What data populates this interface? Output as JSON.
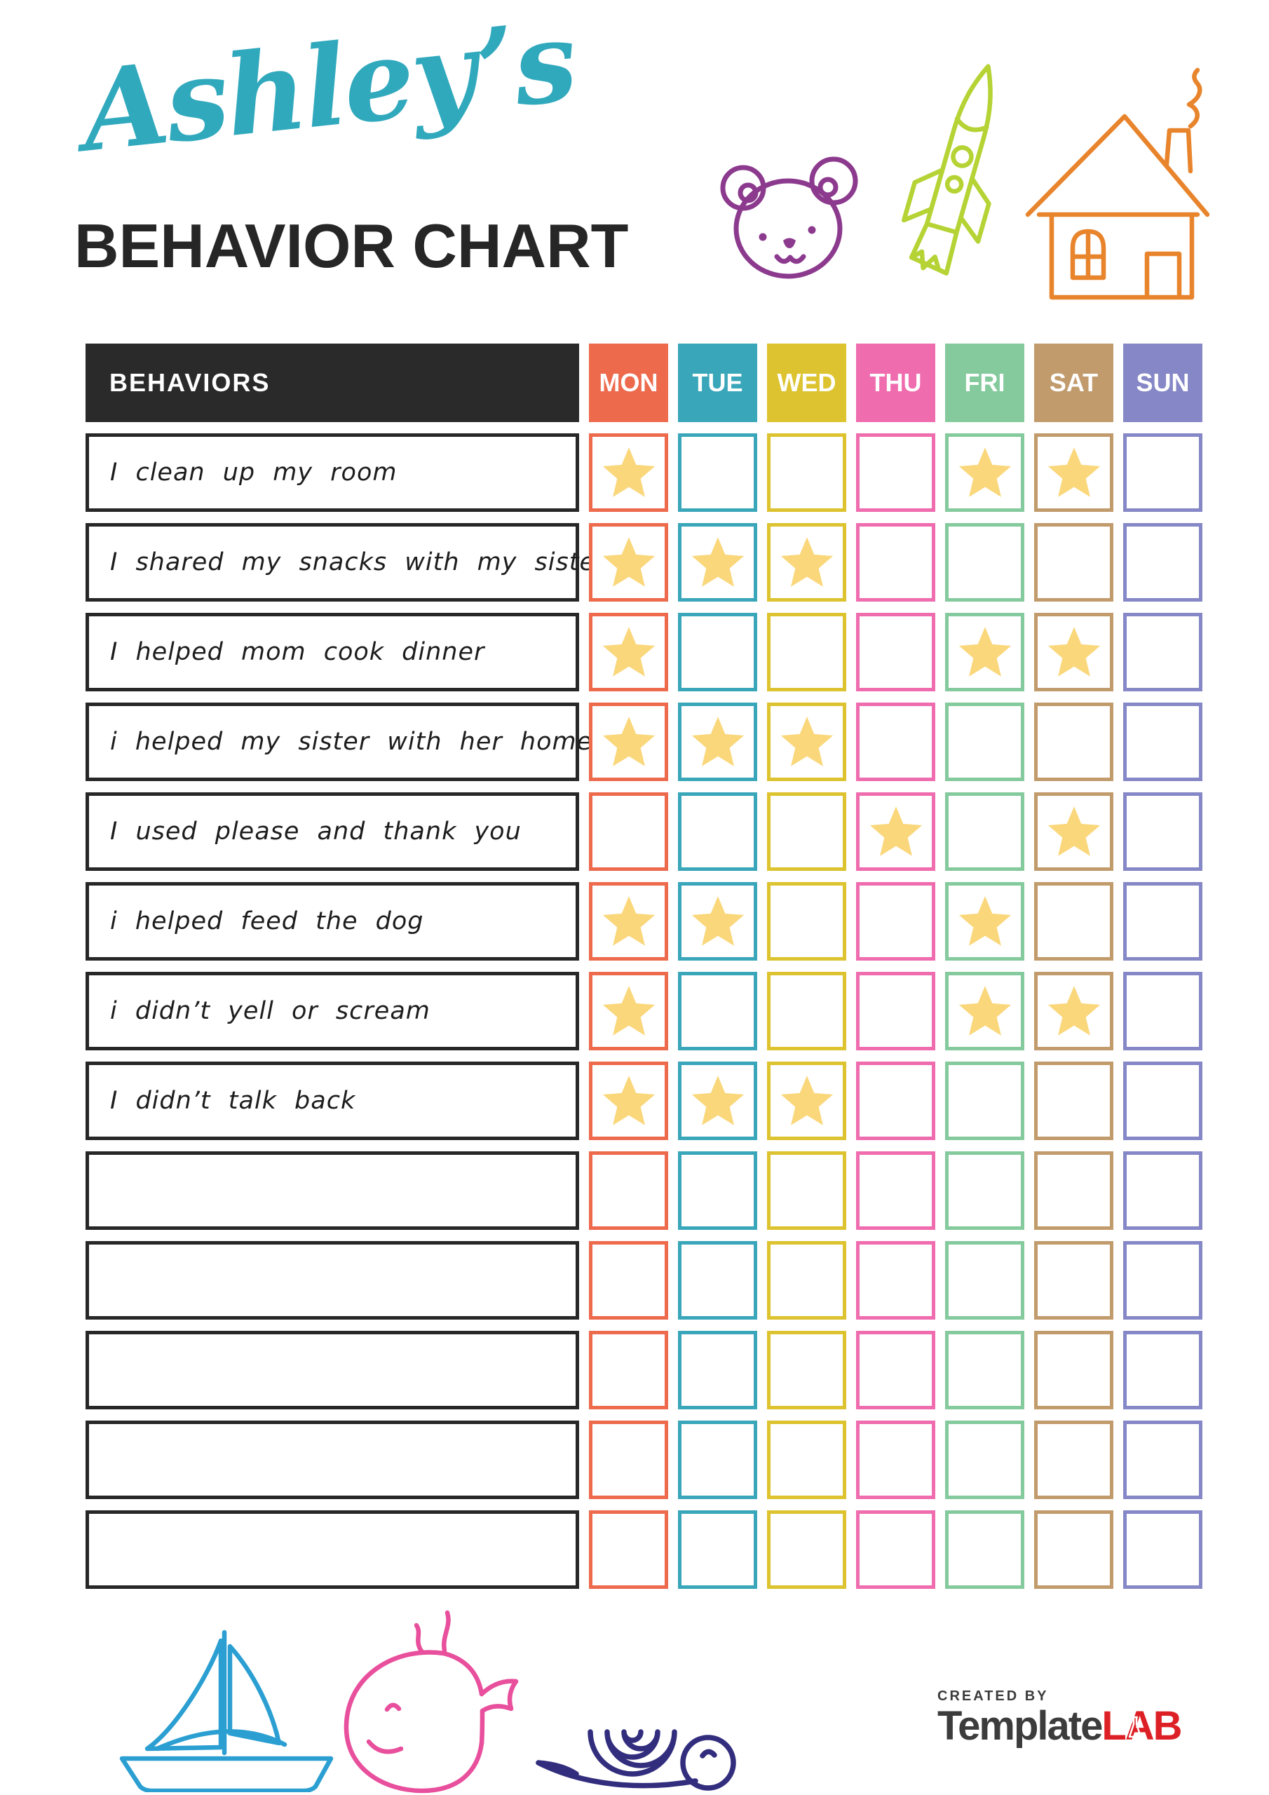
{
  "title": {
    "name_script": "Ashley’s",
    "heading": "BEHAVIOR CHART"
  },
  "colors": {
    "title_script": "#31A9BD",
    "heading": "#262626",
    "behaviors_header_bg": "#2A2A2A",
    "behavior_border": "#272727",
    "bear": "#8C3A8E",
    "rocket": "#B5D334",
    "house": "#E8842C",
    "sailboat": "#2B9FD2",
    "whale": "#E84F9C",
    "snail": "#322D7D",
    "logo_gray": "#3C3C3C",
    "logo_red": "#DD2026"
  },
  "table": {
    "behaviors_label": "BEHAVIORS",
    "star_color": "#FAD77B",
    "days": [
      {
        "label": "MON",
        "color": "#ED6A4D"
      },
      {
        "label": "TUE",
        "color": "#3AA6BA"
      },
      {
        "label": "WED",
        "color": "#DCC32F"
      },
      {
        "label": "THU",
        "color": "#EF6CAE"
      },
      {
        "label": "FRI",
        "color": "#84CA9D"
      },
      {
        "label": "SAT",
        "color": "#C19B6C"
      },
      {
        "label": "SUN",
        "color": "#8587C6"
      }
    ],
    "rows": [
      {
        "behavior": "I clean up my room",
        "stars": [
          1,
          0,
          0,
          0,
          1,
          1,
          0
        ]
      },
      {
        "behavior": "I shared my snacks with my sister",
        "stars": [
          1,
          1,
          1,
          0,
          0,
          0,
          0
        ]
      },
      {
        "behavior": "I helped mom cook dinner",
        "stars": [
          1,
          0,
          0,
          0,
          1,
          1,
          0
        ]
      },
      {
        "behavior": "i helped my sister with her homework",
        "stars": [
          1,
          1,
          1,
          0,
          0,
          0,
          0
        ]
      },
      {
        "behavior": "I used please and thank you",
        "stars": [
          0,
          0,
          0,
          1,
          0,
          1,
          0
        ]
      },
      {
        "behavior": "i helped feed the dog",
        "stars": [
          1,
          1,
          0,
          0,
          1,
          0,
          0
        ]
      },
      {
        "behavior": "i didn’t yell or scream",
        "stars": [
          1,
          0,
          0,
          0,
          1,
          1,
          0
        ]
      },
      {
        "behavior": "I didn’t talk back",
        "stars": [
          1,
          1,
          1,
          0,
          0,
          0,
          0
        ]
      },
      {
        "behavior": "",
        "stars": [
          0,
          0,
          0,
          0,
          0,
          0,
          0
        ]
      },
      {
        "behavior": "",
        "stars": [
          0,
          0,
          0,
          0,
          0,
          0,
          0
        ]
      },
      {
        "behavior": "",
        "stars": [
          0,
          0,
          0,
          0,
          0,
          0,
          0
        ]
      },
      {
        "behavior": "",
        "stars": [
          0,
          0,
          0,
          0,
          0,
          0,
          0
        ]
      },
      {
        "behavior": "",
        "stars": [
          0,
          0,
          0,
          0,
          0,
          0,
          0
        ]
      }
    ]
  },
  "doodles": {
    "top": [
      "bear-doodle",
      "rocket-doodle",
      "house-doodle"
    ],
    "bottom": [
      "sailboat-doodle",
      "whale-doodle",
      "snail-doodle"
    ]
  },
  "footer": {
    "created_by": "CREATED BY",
    "brand_gray": "Template",
    "brand_red": "LAB"
  }
}
